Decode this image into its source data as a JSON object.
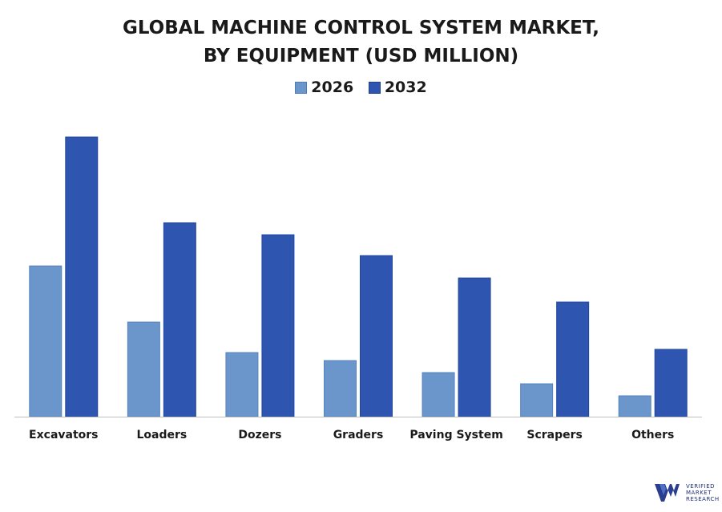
{
  "chart_data": {
    "type": "bar",
    "title_lines": [
      "GLOBAL MACHINE CONTROL SYSTEM MARKET,",
      "BY EQUIPMENT (USD MILLION)"
    ],
    "categories": [
      "Excavators",
      "Loaders",
      "Dozers",
      "Graders",
      "Paving System",
      "Scrapers",
      "Others"
    ],
    "series": [
      {
        "name": "2026",
        "color": "#6a96cc",
        "values": [
          188,
          118,
          80,
          70,
          55,
          41,
          26
        ]
      },
      {
        "name": "2032",
        "color": "#2e55b0",
        "values": [
          349,
          242,
          227,
          201,
          173,
          143,
          84
        ]
      }
    ],
    "ylim": [
      0,
      400
    ],
    "grid": false,
    "legend_position": "top-center",
    "xlabel": "",
    "ylabel": ""
  },
  "logo": {
    "lines": [
      "VERIFIED",
      "MARKET",
      "RESEARCH"
    ],
    "color": "#1e2f7a"
  }
}
